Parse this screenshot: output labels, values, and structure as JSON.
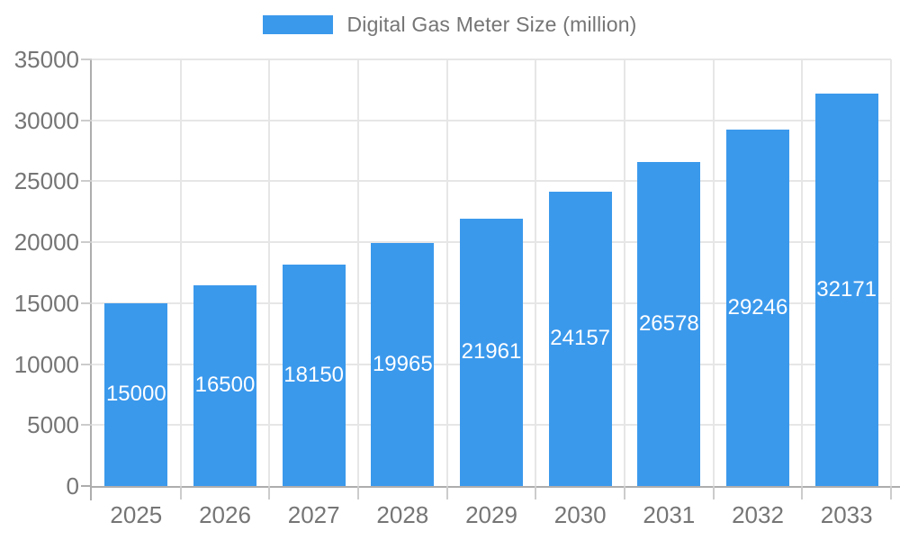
{
  "legend": {
    "label": "Digital Gas Meter Size (million)"
  },
  "chart_data": {
    "type": "bar",
    "title": "Digital Gas Meter Size (million)",
    "categories": [
      "2025",
      "2026",
      "2027",
      "2028",
      "2029",
      "2030",
      "2031",
      "2032",
      "2033"
    ],
    "values": [
      15000,
      16500,
      18150,
      19965,
      21961,
      24157,
      26578,
      29246,
      32171
    ],
    "value_labels": [
      "15000",
      "16500",
      "18150",
      "19965",
      "21961",
      "24157",
      "26578",
      "29246",
      "32171"
    ],
    "value_labels_position": "inside-center",
    "xlabel": "",
    "ylabel": "",
    "ylim": [
      0,
      35000
    ],
    "y_ticks": [
      0,
      5000,
      10000,
      15000,
      20000,
      25000,
      30000,
      35000
    ],
    "grid": true,
    "legend_position": "top-center"
  },
  "colors": {
    "bar": "#3b99ec",
    "gridline": "#e6e6e6",
    "axis_line": "#adadad",
    "tick_mark": "#cccccc",
    "axis_text": "#757575",
    "value_label_text": "#ffffff",
    "background": "#ffffff"
  }
}
